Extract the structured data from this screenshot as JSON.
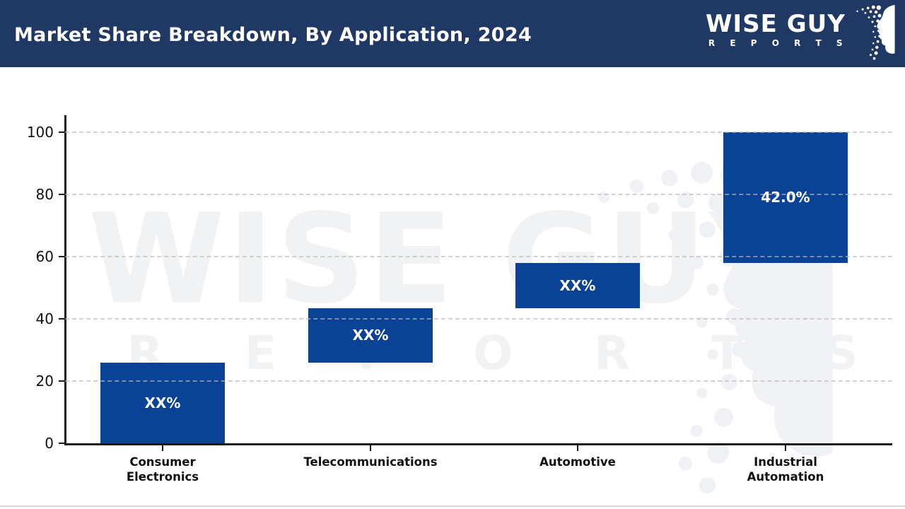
{
  "header": {
    "title": "Market Share Breakdown, By Application, 2024",
    "bg_color": "#1f3864",
    "logo": {
      "line1": "WISE GUY",
      "line2": "R E P O R T S"
    }
  },
  "watermark": {
    "line1": "WISE GUY",
    "line2": "R E P O R T S"
  },
  "chart_data": {
    "type": "waterfall",
    "title": "Market Share Breakdown, By Application, 2024",
    "categories": [
      "Consumer Electronics",
      "Telecommunications",
      "Automotive",
      "Industrial Automation"
    ],
    "category_label_lines": [
      [
        "Consumer",
        "Electronics"
      ],
      [
        "Telecommunications"
      ],
      [
        "Automotive"
      ],
      [
        "Industrial",
        "Automation"
      ]
    ],
    "segments": [
      {
        "category": "Consumer Electronics",
        "start": 0,
        "end": 26,
        "value": 26,
        "value_label": "XX%"
      },
      {
        "category": "Telecommunications",
        "start": 26,
        "end": 43.5,
        "value": 17.5,
        "value_label": "XX%"
      },
      {
        "category": "Automotive",
        "start": 43.5,
        "end": 58,
        "value": 14.5,
        "value_label": "XX%"
      },
      {
        "category": "Industrial Automation",
        "start": 58,
        "end": 100,
        "value": 42.0,
        "value_label": "42.0%"
      }
    ],
    "yticks": [
      0,
      20,
      40,
      60,
      80,
      100
    ],
    "ylim": [
      0,
      105
    ],
    "xlabel": "",
    "ylabel": "",
    "legend": "none",
    "grid": "horizontal-dashed-over-bars",
    "bar_color": "#0a4296",
    "axis_color": "#1a1a1a",
    "grid_color": "#bdbdbd",
    "label_text_color": "#ffffff"
  }
}
